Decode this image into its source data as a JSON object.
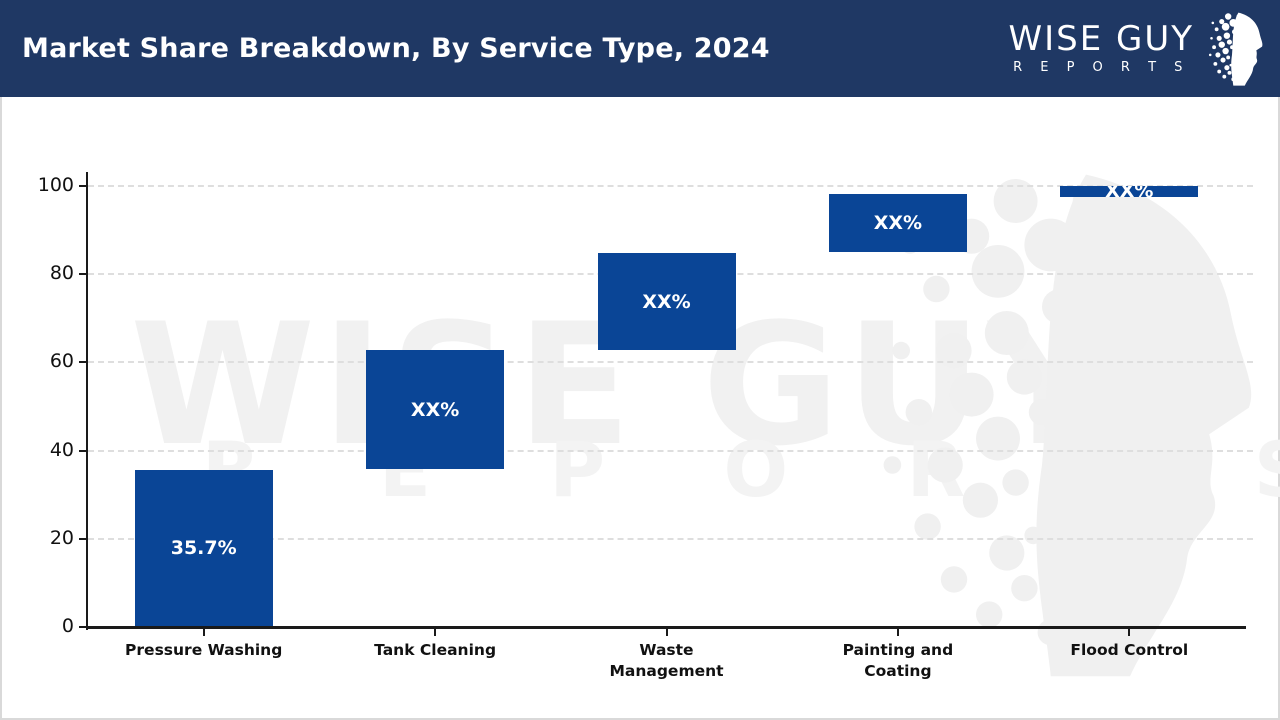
{
  "header": {
    "title": "Market Share Breakdown, By Service Type, 2024",
    "bg_color": "#1f3864",
    "logo_line1": "WISE GUY",
    "logo_line2": "R E P O R T S"
  },
  "watermark": {
    "line1": "WISE GUY",
    "line2": "R E P O R T S"
  },
  "chart_data": {
    "type": "bar",
    "variant": "waterfall",
    "title": "Market Share Breakdown, By Service Type, 2024",
    "categories": [
      "Pressure Washing",
      "Tank Cleaning",
      "Waste Management",
      "Painting and Coating",
      "Flood Control"
    ],
    "segments": [
      {
        "category": "Pressure Washing",
        "start": 0,
        "end": 35.7,
        "label": "35.7%"
      },
      {
        "category": "Tank Cleaning",
        "start": 35.8,
        "end": 62.8,
        "label": "XX%"
      },
      {
        "category": "Waste Management",
        "start": 62.8,
        "end": 84.8,
        "label": "XX%"
      },
      {
        "category": "Painting and Coating",
        "start": 85.0,
        "end": 98.2,
        "label": "XX%"
      },
      {
        "category": "Flood Control",
        "start": 97.6,
        "end": 100,
        "label": "XX%"
      }
    ],
    "xlabel": "",
    "ylabel": "",
    "ylim": [
      0,
      100
    ],
    "y_ticks": [
      0,
      20,
      40,
      60,
      80,
      100
    ],
    "grid": "horizontal-dashed",
    "legend": "none",
    "bar_color": "#0a4596",
    "bar_label_color": "#ffffff",
    "axis_color": "#1a1a1a",
    "grid_color": "#dedede"
  }
}
